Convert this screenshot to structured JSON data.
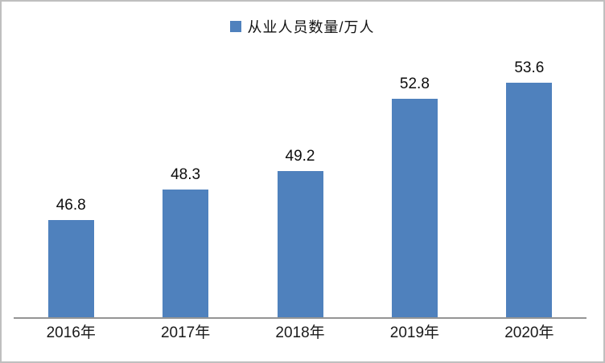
{
  "chart_data": {
    "type": "bar",
    "title": "",
    "legend": {
      "label": "从业人员数量/万人",
      "position": "top",
      "marker_color": "#4F81BD"
    },
    "categories": [
      "2016年",
      "2017年",
      "2018年",
      "2019年",
      "2020年"
    ],
    "series": [
      {
        "name": "从业人员数量/万人",
        "values": [
          46.8,
          48.3,
          49.2,
          52.8,
          53.6
        ],
        "data_labels": [
          "46.8",
          "48.3",
          "49.2",
          "52.8",
          "53.6"
        ],
        "color": "#4F81BD"
      }
    ],
    "xlabel": "",
    "ylabel": "",
    "ylim": [
      42,
      56
    ],
    "y_axis_visible": false,
    "grid": false,
    "axis_line_color": "#959595",
    "frame_color": "#bfbfbf",
    "data_label_color": "#0d0d0d",
    "tick_label_color": "#1a1a1a"
  }
}
